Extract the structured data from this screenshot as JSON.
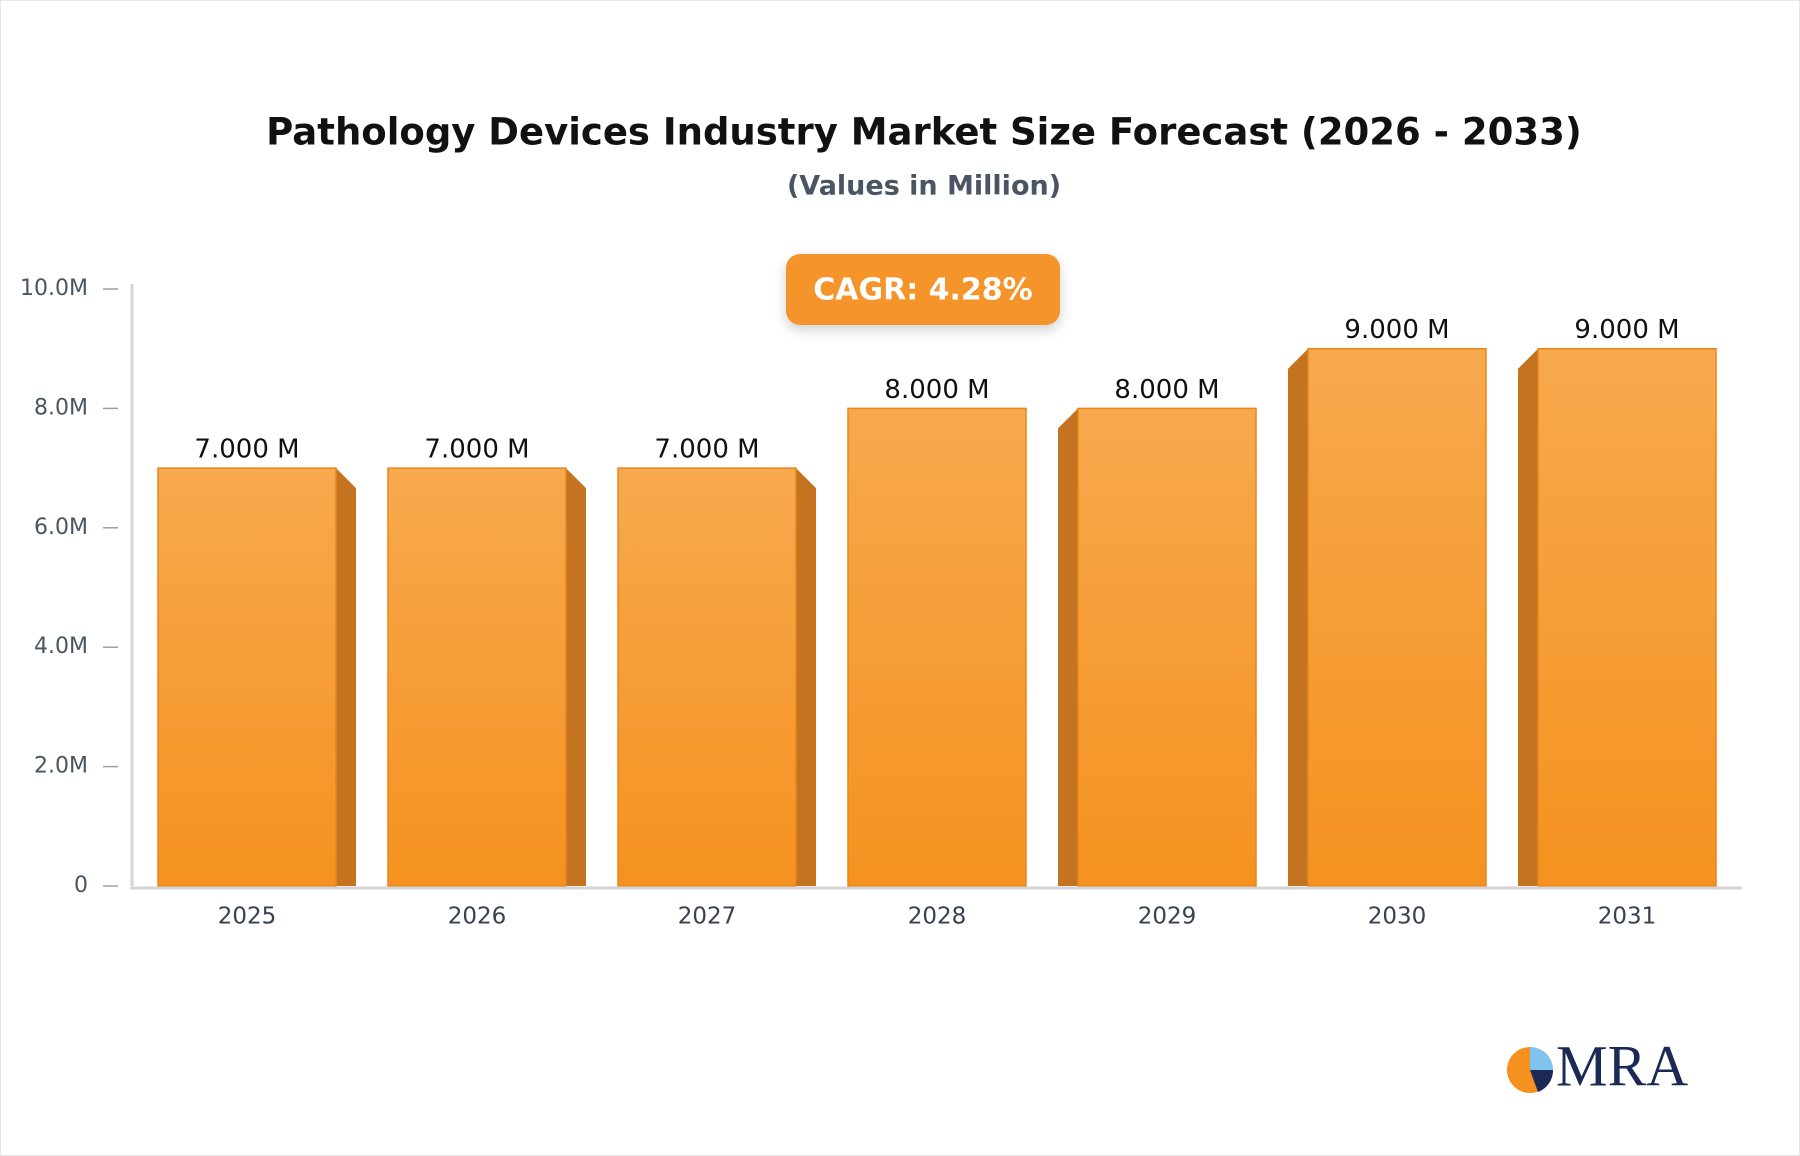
{
  "chart_data": {
    "type": "bar",
    "title": "Pathology Devices Industry Market Size Forecast (2026 - 2033)",
    "subtitle": "(Values in Million)",
    "annotation": "CAGR: 4.28%",
    "logo": "MRA",
    "categories": [
      "2025",
      "2026",
      "2027",
      "2028",
      "2029",
      "2030",
      "2031"
    ],
    "values": [
      7,
      7,
      7,
      8,
      8,
      9,
      9
    ],
    "value_labels": [
      "7.000 M",
      "7.000 M",
      "7.000 M",
      "8.000 M",
      "8.000 M",
      "9.000 M",
      "9.000 M"
    ],
    "color": "#f5992f",
    "ylim": [
      0,
      10
    ],
    "yticks": [
      0,
      {
        "value": 2,
        "label": "2.0M"
      },
      {
        "value": 4,
        "label": "4.0M"
      },
      {
        "value": 6,
        "label": "6.0M"
      },
      {
        "value": 8,
        "label": "8.0M"
      },
      {
        "value": 10,
        "label": "10.0M"
      }
    ],
    "grid": false
  }
}
